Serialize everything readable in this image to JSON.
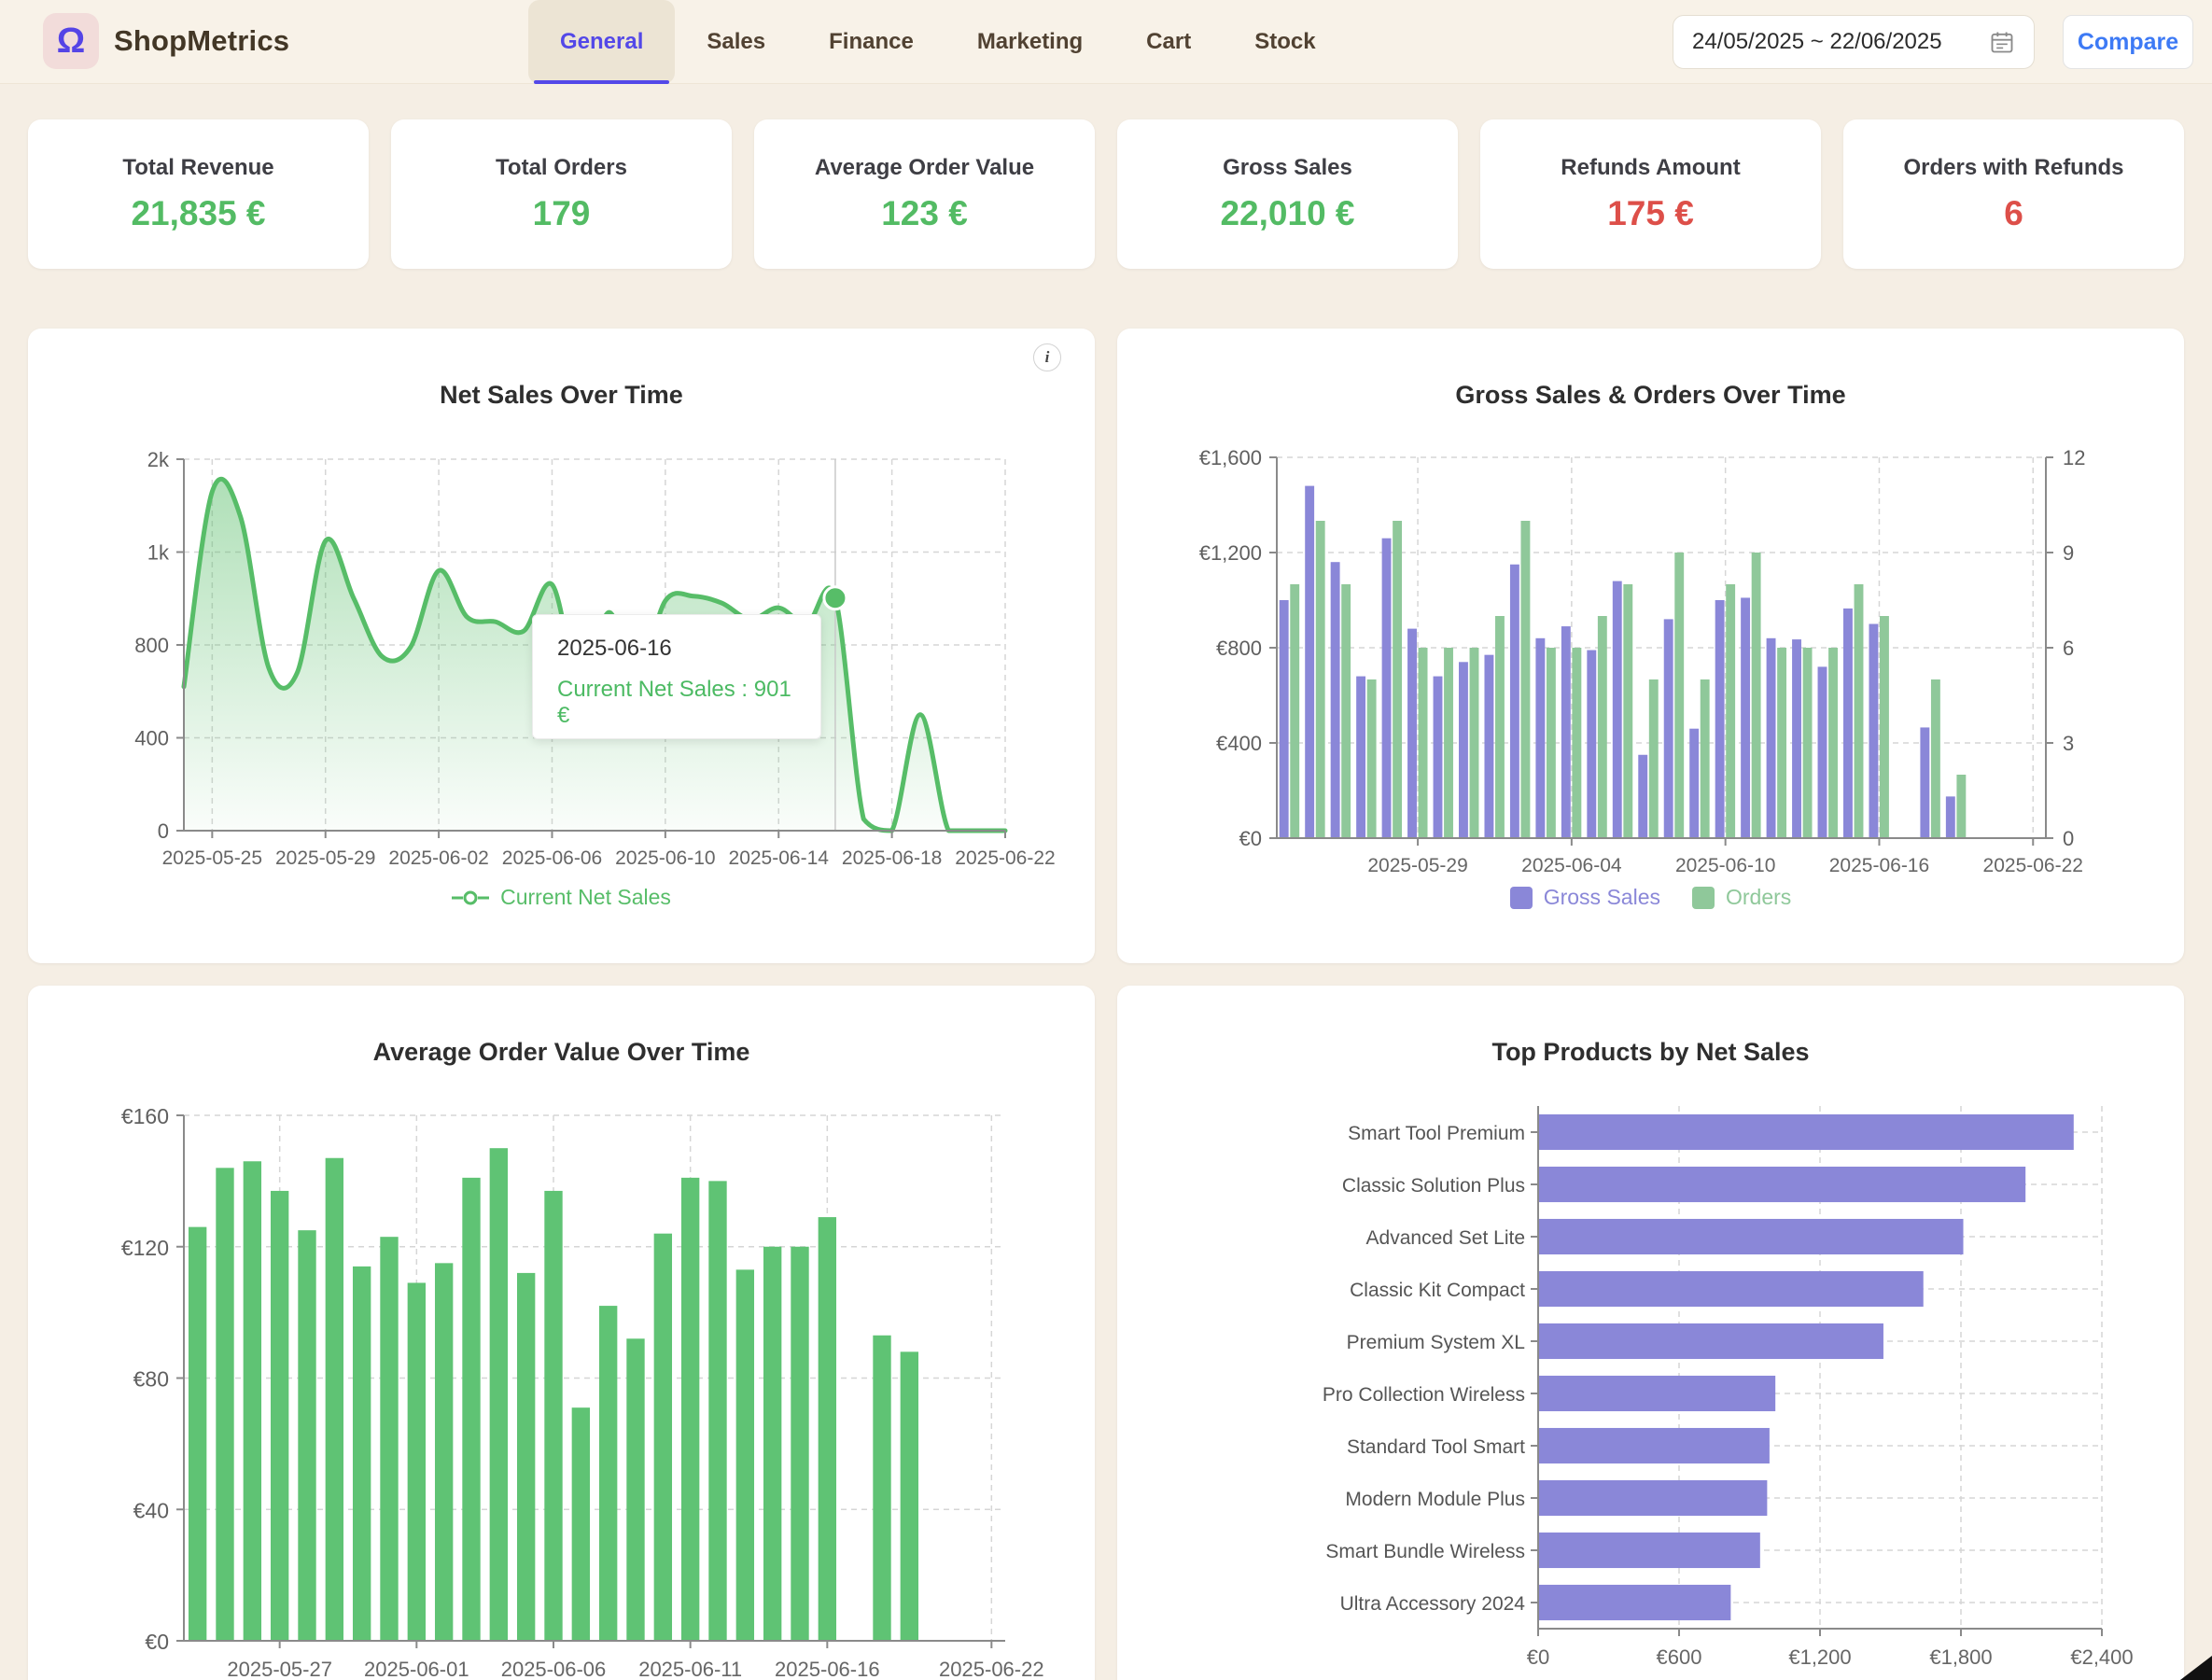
{
  "header": {
    "app_name": "ShopMetrics",
    "logo_glyph": "Ω",
    "tabs": [
      {
        "label": "General",
        "active": true
      },
      {
        "label": "Sales",
        "active": false
      },
      {
        "label": "Finance",
        "active": false
      },
      {
        "label": "Marketing",
        "active": false
      },
      {
        "label": "Cart",
        "active": false
      },
      {
        "label": "Stock",
        "active": false
      }
    ],
    "date_range": "24/05/2025 ~ 22/06/2025",
    "compare_label": "Compare"
  },
  "kpis": [
    {
      "label": "Total Revenue",
      "value": "21,835 €",
      "color": "green"
    },
    {
      "label": "Total Orders",
      "value": "179",
      "color": "green"
    },
    {
      "label": "Average Order Value",
      "value": "123 €",
      "color": "green"
    },
    {
      "label": "Gross Sales",
      "value": "22,010 €",
      "color": "green"
    },
    {
      "label": "Refunds Amount",
      "value": "175 €",
      "color": "red"
    },
    {
      "label": "Orders with Refunds",
      "value": "6",
      "color": "red"
    }
  ],
  "colors": {
    "kpi_green": "#53bb64",
    "kpi_red": "#dd4f49",
    "line_green": "#57bd68",
    "aov_green": "#5fc374",
    "bar_purple": "#8a87d8",
    "bar_green": "#8fc89a",
    "indigo": "#5348e8",
    "compare_blue": "#3d7af5",
    "grid": "#d6d6d6",
    "axis": "#8a8a8a",
    "tick_text": "#6e6e6e"
  },
  "chart_data": [
    {
      "type": "area",
      "title": "Net Sales Over Time",
      "legend": "Current Net Sales",
      "legend_position": "bottom-center",
      "grid": true,
      "x": [
        "2025-05-24",
        "2025-05-25",
        "2025-05-26",
        "2025-05-27",
        "2025-05-28",
        "2025-05-29",
        "2025-05-30",
        "2025-05-31",
        "2025-06-01",
        "2025-06-02",
        "2025-06-03",
        "2025-06-04",
        "2025-06-05",
        "2025-06-06",
        "2025-06-07",
        "2025-06-08",
        "2025-06-09",
        "2025-06-10",
        "2025-06-11",
        "2025-06-12",
        "2025-06-13",
        "2025-06-14",
        "2025-06-15",
        "2025-06-16",
        "2025-06-17",
        "2025-06-18",
        "2025-06-19",
        "2025-06-20",
        "2025-06-21",
        "2025-06-22"
      ],
      "values": [
        620,
        1650,
        1380,
        700,
        680,
        1120,
        900,
        750,
        790,
        960,
        860,
        850,
        830,
        930,
        620,
        870,
        660,
        895,
        905,
        890,
        855,
        880,
        845,
        901,
        50,
        0,
        500,
        0,
        0,
        0
      ],
      "ylabel": "",
      "y_ticks": [
        {
          "label": "0",
          "v": 0
        },
        {
          "label": "400",
          "v": 400
        },
        {
          "label": "800",
          "v": 800
        },
        {
          "label": "1k",
          "v": 1000
        },
        {
          "label": "2k",
          "v": 2000
        }
      ],
      "ylim": [
        0,
        2000
      ],
      "x_tick_labels": [
        "2025-05-25",
        "2025-05-29",
        "2025-06-02",
        "2025-06-06",
        "2025-06-10",
        "2025-06-14",
        "2025-06-18",
        "2025-06-22"
      ],
      "x_tick_indices": [
        1,
        5,
        9,
        13,
        17,
        21,
        25,
        29
      ],
      "tooltip": {
        "date": "2025-06-16",
        "text": "Current Net Sales : 901 €",
        "index": 23,
        "value": 901
      }
    },
    {
      "type": "bar",
      "title": "Gross Sales & Orders Over Time",
      "grid": true,
      "legend_position": "bottom-center",
      "categories": [
        "2025-05-24",
        "2025-05-25",
        "2025-05-26",
        "2025-05-27",
        "2025-05-28",
        "2025-05-29",
        "2025-05-30",
        "2025-05-31",
        "2025-06-01",
        "2025-06-02",
        "2025-06-03",
        "2025-06-04",
        "2025-06-05",
        "2025-06-06",
        "2025-06-07",
        "2025-06-08",
        "2025-06-09",
        "2025-06-10",
        "2025-06-11",
        "2025-06-12",
        "2025-06-13",
        "2025-06-14",
        "2025-06-15",
        "2025-06-16",
        "2025-06-17",
        "2025-06-18",
        "2025-06-19",
        "2025-06-20",
        "2025-06-21",
        "2025-06-22"
      ],
      "series": [
        {
          "name": "Gross Sales",
          "axis": "left",
          "values": [
            1000,
            1480,
            1160,
            680,
            1260,
            880,
            680,
            740,
            770,
            1150,
            840,
            890,
            790,
            1080,
            350,
            920,
            460,
            1000,
            1010,
            840,
            835,
            720,
            965,
            900,
            0,
            465,
            175,
            0,
            0,
            0
          ]
        },
        {
          "name": "Orders",
          "axis": "right",
          "values": [
            8,
            10,
            8,
            5,
            10,
            6,
            6,
            6,
            7,
            10,
            6,
            6,
            7,
            8,
            5,
            9,
            5,
            8,
            9,
            6,
            6,
            6,
            8,
            7,
            0,
            5,
            2,
            0,
            0,
            0
          ]
        }
      ],
      "left_ticks": [
        "€0",
        "€400",
        "€800",
        "€1,200",
        "€1,600"
      ],
      "left_lim": [
        0,
        1600
      ],
      "right_ticks": [
        "0",
        "3",
        "6",
        "9",
        "12"
      ],
      "right_lim": [
        0,
        12
      ],
      "x_tick_labels": [
        "2025-05-29",
        "2025-06-04",
        "2025-06-10",
        "2025-06-16",
        "2025-06-22"
      ],
      "x_tick_indices": [
        5,
        11,
        17,
        23,
        29
      ]
    },
    {
      "type": "bar",
      "title": "Average Order Value Over Time",
      "grid": true,
      "categories": [
        "2025-05-24",
        "2025-05-25",
        "2025-05-26",
        "2025-05-27",
        "2025-05-28",
        "2025-05-29",
        "2025-05-30",
        "2025-05-31",
        "2025-06-01",
        "2025-06-02",
        "2025-06-03",
        "2025-06-04",
        "2025-06-05",
        "2025-06-06",
        "2025-06-07",
        "2025-06-08",
        "2025-06-09",
        "2025-06-10",
        "2025-06-11",
        "2025-06-12",
        "2025-06-13",
        "2025-06-14",
        "2025-06-15",
        "2025-06-16",
        "2025-06-17",
        "2025-06-18",
        "2025-06-19",
        "2025-06-20",
        "2025-06-21",
        "2025-06-22"
      ],
      "values": [
        126,
        144,
        146,
        137,
        125,
        147,
        114,
        123,
        109,
        115,
        141,
        150,
        112,
        137,
        71,
        102,
        92,
        124,
        141,
        140,
        113,
        120,
        120,
        129,
        0,
        93,
        88,
        0,
        0,
        0
      ],
      "y_ticks": [
        "€0",
        "€40",
        "€80",
        "€120",
        "€160"
      ],
      "ylim": [
        0,
        160
      ],
      "x_tick_labels": [
        "2025-05-27",
        "2025-06-01",
        "2025-06-06",
        "2025-06-11",
        "2025-06-16",
        "2025-06-22"
      ],
      "x_tick_indices": [
        3,
        8,
        13,
        18,
        23,
        29
      ]
    },
    {
      "type": "bar",
      "orientation": "horizontal",
      "title": "Top Products by Net Sales",
      "grid": true,
      "categories": [
        "Smart Tool Premium",
        "Classic Solution Plus",
        "Advanced Set Lite",
        "Classic Kit Compact",
        "Premium System XL",
        "Pro Collection Wireless",
        "Standard Tool Smart",
        "Modern Module Plus",
        "Smart Bundle Wireless",
        "Ultra Accessory 2024"
      ],
      "values": [
        2280,
        2075,
        1810,
        1640,
        1470,
        1010,
        985,
        975,
        945,
        820
      ],
      "x_ticks": [
        "€0",
        "€600",
        "€1,200",
        "€1,800",
        "€2,400"
      ],
      "xlim": [
        0,
        2400
      ]
    }
  ]
}
